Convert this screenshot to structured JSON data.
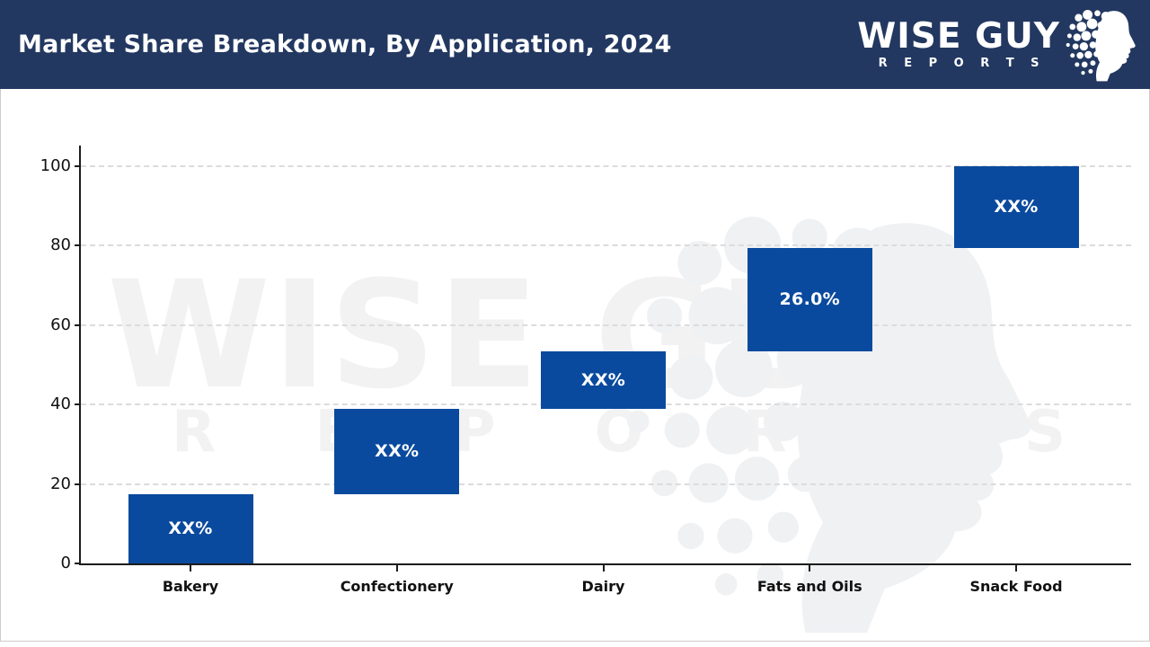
{
  "header": {
    "title": "Market Share Breakdown, By Application, 2024",
    "logo": {
      "line1": "WISE GUY",
      "line2": "R E P O R T S"
    }
  },
  "watermark": {
    "line1": "WISE GUY",
    "line2": "R E P O R T S"
  },
  "colors": {
    "header_bg": "#223861",
    "bar_fill": "#0a4a9e",
    "bar_label": "#ffffff",
    "gridline": "#dcdcdc",
    "axis": "#1c1c1c",
    "tick_text": "#111111",
    "watermark": "#f2f2f2"
  },
  "chart_data": {
    "type": "bar",
    "subtype": "floating-waterfall",
    "title": "Market Share Breakdown, By Application, 2024",
    "xlabel": "",
    "ylabel": "",
    "ylim": [
      0,
      105
    ],
    "yticks": [
      0,
      20,
      40,
      60,
      80,
      100
    ],
    "grid": "horizontal-dashed",
    "legend": "none",
    "categories": [
      "Bakery",
      "Confectionery",
      "Dairy",
      "Fats and Oils",
      "Snack Food"
    ],
    "segments": [
      {
        "category": "Bakery",
        "start": 0,
        "end": 17.5,
        "value": 17.5,
        "label": "XX%"
      },
      {
        "category": "Confectionery",
        "start": 17.5,
        "end": 39,
        "value": 21.5,
        "label": "XX%"
      },
      {
        "category": "Dairy",
        "start": 39,
        "end": 53.5,
        "value": 14.5,
        "label": "XX%"
      },
      {
        "category": "Fats and Oils",
        "start": 53.5,
        "end": 79.5,
        "value": 26.0,
        "label": "26.0%"
      },
      {
        "category": "Snack Food",
        "start": 79.5,
        "end": 100,
        "value": 20.5,
        "label": "XX%"
      }
    ]
  }
}
